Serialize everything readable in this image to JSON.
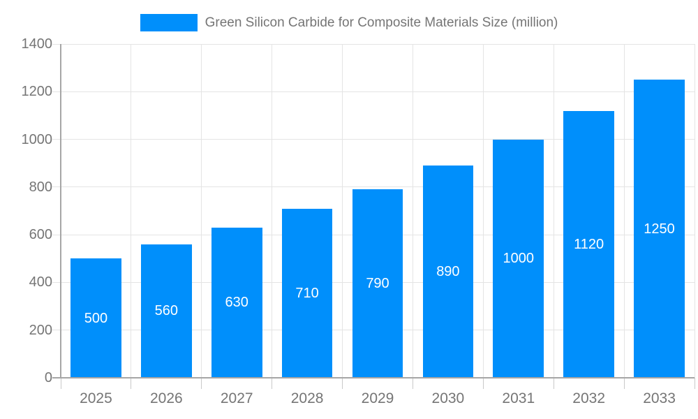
{
  "legend": {
    "label": "Green Silicon Carbide for Composite Materials Size (million)"
  },
  "chart_data": {
    "type": "bar",
    "title": "Green Silicon Carbide for Composite Materials Size (million)",
    "categories": [
      "2025",
      "2026",
      "2027",
      "2028",
      "2029",
      "2030",
      "2031",
      "2032",
      "2033"
    ],
    "values": [
      500,
      560,
      630,
      710,
      790,
      890,
      1000,
      1120,
      1250
    ],
    "xlabel": "",
    "ylabel": "",
    "ylim": [
      0,
      1400
    ],
    "ytick_step": 200,
    "ytick_labels": [
      "0",
      "200",
      "400",
      "600",
      "800",
      "1000",
      "1200",
      "1400"
    ],
    "grid": true,
    "legend_position": "top",
    "colors": {
      "bar": "#008FFB",
      "grid": "#e4e4e4",
      "axis": "#a6a6a6",
      "tick": "#c9c9c9",
      "text": "#757575",
      "value_label": "#ffffff",
      "background": "#ffffff"
    }
  }
}
